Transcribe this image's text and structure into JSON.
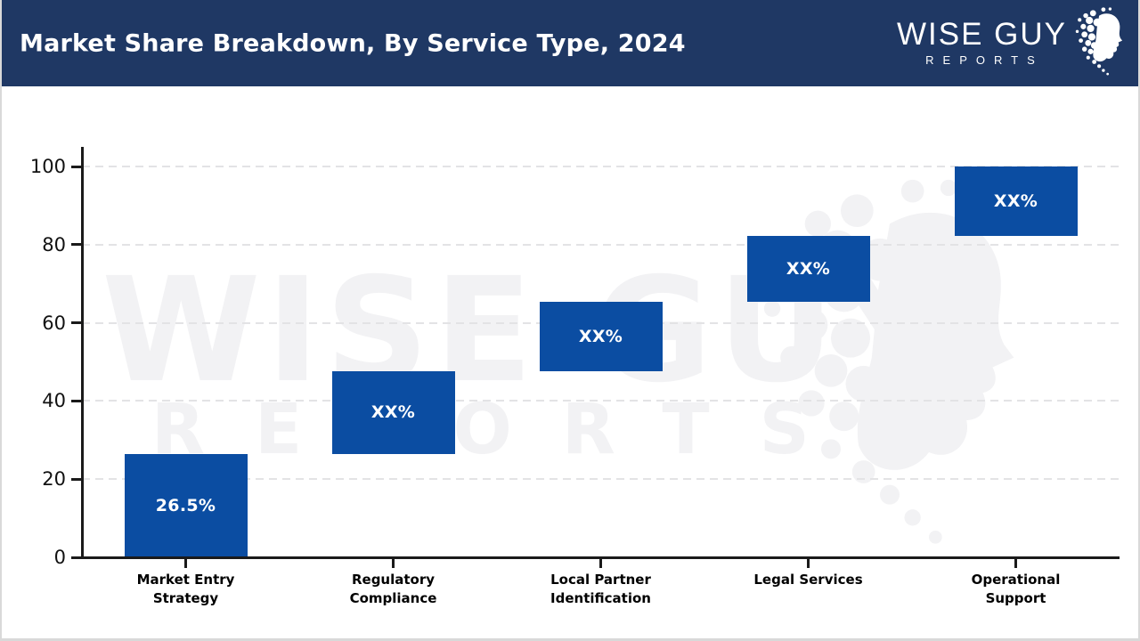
{
  "header": {
    "title": "Market Share Breakdown, By Service Type, 2024",
    "bg_color": "#1f3864",
    "logo_line1": "WISE GUY",
    "logo_line2": "REPORTS"
  },
  "watermark": {
    "line1": "WISE GUY",
    "line2": "REPORTS"
  },
  "chart_data": {
    "type": "bar",
    "subtype": "stacked-waterfall",
    "title": "Market Share Breakdown, By Service Type, 2024",
    "xlabel": "",
    "ylabel": "",
    "ylim": [
      0,
      100
    ],
    "yticks": [
      0,
      20,
      40,
      60,
      80,
      100
    ],
    "grid": true,
    "bar_color": "#0b4da2",
    "label_color": "#ffffff",
    "categories": [
      "Market Entry Strategy",
      "Regulatory Compliance",
      "Local Partner Identification",
      "Legal Services",
      "Operational Support"
    ],
    "bars": [
      {
        "category": "Market Entry\nStrategy",
        "start": 0,
        "end": 26.5,
        "label": "26.5%"
      },
      {
        "category": "Regulatory\nCompliance",
        "start": 26.5,
        "end": 47.6,
        "label": "XX%"
      },
      {
        "category": "Local Partner\nIdentification",
        "start": 47.6,
        "end": 65.4,
        "label": "XX%"
      },
      {
        "category": "Legal Services",
        "start": 65.4,
        "end": 82.2,
        "label": "XX%"
      },
      {
        "category": "Operational\nSupport",
        "start": 82.2,
        "end": 100,
        "label": "XX%"
      }
    ]
  }
}
